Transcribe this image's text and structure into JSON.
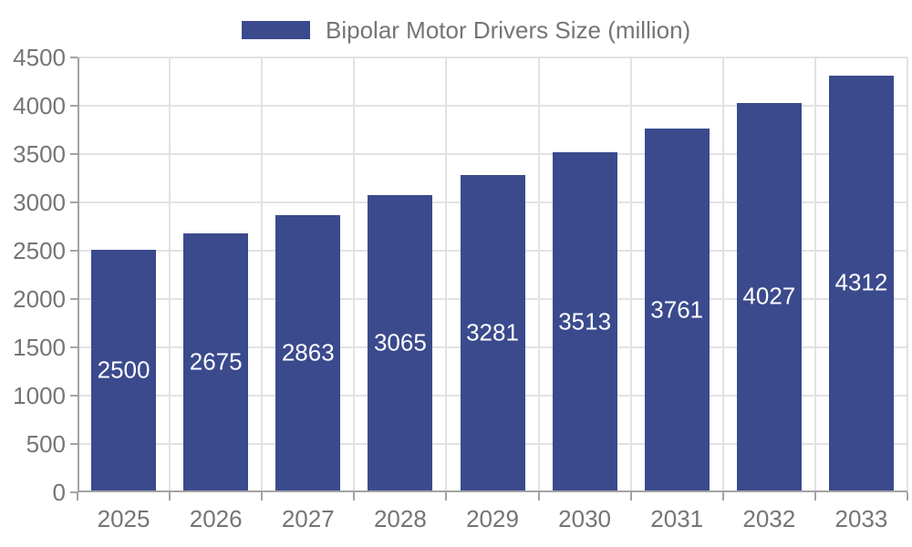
{
  "legend": {
    "label": "Bipolar Motor Drivers Size (million)"
  },
  "chart_data": {
    "type": "bar",
    "title": "Bipolar Motor Drivers Size (million)",
    "categories": [
      "2025",
      "2026",
      "2027",
      "2028",
      "2029",
      "2030",
      "2031",
      "2032",
      "2033"
    ],
    "values": [
      2500,
      2675,
      2863,
      3065,
      3281,
      3513,
      3761,
      4027,
      4312
    ],
    "series": [
      {
        "name": "Bipolar Motor Drivers Size (million)",
        "values": [
          2500,
          2675,
          2863,
          3065,
          3281,
          3513,
          3761,
          4027,
          4312
        ]
      }
    ],
    "value_labels_inside_bars": true,
    "xlabel": "",
    "ylabel": "",
    "ylim": [
      0,
      4500
    ],
    "yticks": [
      0,
      500,
      1000,
      1500,
      2000,
      2500,
      3000,
      3500,
      4000,
      4500
    ],
    "grid": true,
    "legend_position": "top",
    "colors": {
      "bar": "#3A4A8C",
      "grid": "#E2E2E2",
      "axis": "#A3A3A3",
      "tick_label": "#757575",
      "value_label": "#FFFFFF",
      "background": "#FFFFFF"
    }
  }
}
